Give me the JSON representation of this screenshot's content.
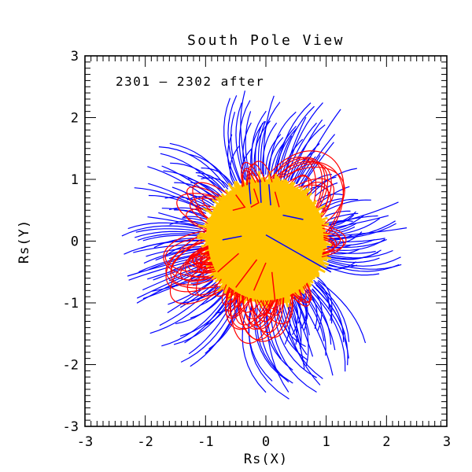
{
  "title": "South Pole View",
  "chart_data": {
    "type": "line",
    "title": "South Pole View",
    "annotation": "2301 — 2302 after",
    "xlabel": "Rs(X)",
    "ylabel": "Rs(Y)",
    "xlim": [
      -3,
      3
    ],
    "ylim": [
      -3,
      3
    ],
    "xticks": [
      "-3",
      "-2",
      "-1",
      "0",
      "1",
      "2",
      "3"
    ],
    "yticks": [
      "-3",
      "-2",
      "-1",
      "0",
      "1",
      "2",
      "3"
    ],
    "xtick_values": [
      -3,
      -2,
      -1,
      0,
      1,
      2,
      3
    ],
    "ytick_values": [
      -3,
      -2,
      -1,
      0,
      1,
      2,
      3
    ],
    "minor_per_major": 10,
    "grid": false,
    "legend": "none",
    "background": "#FFFFFF",
    "axis_color": "#000000",
    "colors": {
      "open": "#0000FF",
      "closed": "#FF0000",
      "sun": "#FFC400"
    },
    "sun": {
      "center_x": 0,
      "center_y": 0,
      "radius": 1.0,
      "spike_count": 240,
      "spike_max": 0.17
    },
    "open_clusters": [
      {
        "a0": 55,
        "a1": 120,
        "n": 42,
        "r1min": 1.5,
        "r1max": 2.55,
        "curl": -8,
        "conv": 10
      },
      {
        "a0": 120,
        "a1": 168,
        "n": 30,
        "r1min": 1.4,
        "r1max": 2.35,
        "curl": 7,
        "conv": 8
      },
      {
        "a0": 168,
        "a1": 205,
        "n": 26,
        "r1min": 1.6,
        "r1max": 2.4,
        "curl": 4,
        "conv": 6
      },
      {
        "a0": 205,
        "a1": 250,
        "n": 28,
        "r1min": 1.4,
        "r1max": 2.5,
        "curl": -6,
        "conv": 8
      },
      {
        "a0": 253,
        "a1": 288,
        "n": 16,
        "r1min": 1.7,
        "r1max": 2.6,
        "curl": 12,
        "conv": 14
      },
      {
        "a0": 288,
        "a1": 326,
        "n": 30,
        "r1min": 1.4,
        "r1max": 2.5,
        "curl": -9,
        "conv": 8
      },
      {
        "a0": 336,
        "a1": 375,
        "n": 30,
        "r1min": 1.4,
        "r1max": 2.4,
        "curl": 6,
        "conv": 8
      },
      {
        "a0": 12,
        "a1": 55,
        "n": 14,
        "r1min": 1.3,
        "r1max": 2.1,
        "curl": -5,
        "conv": 5
      }
    ],
    "closed_clusters": [
      {
        "center": 50,
        "spread": 12,
        "n": 13,
        "hw0": 10,
        "hw1": 40,
        "ap0": 1.15,
        "ap1": 1.92,
        "over": false
      },
      {
        "center": 150,
        "spread": 10,
        "n": 7,
        "hw0": 6,
        "hw1": 18,
        "ap0": 1.15,
        "ap1": 1.7,
        "over": false
      },
      {
        "center": 205,
        "spread": 12,
        "n": 16,
        "hw0": 6,
        "hw1": 26,
        "ap0": 1.05,
        "ap1": 2.0,
        "over": false
      },
      {
        "center": 268,
        "spread": 14,
        "n": 20,
        "hw0": 6,
        "hw1": 28,
        "ap0": 1.05,
        "ap1": 1.75,
        "over": true
      },
      {
        "center": 2,
        "spread": 8,
        "n": 7,
        "hw0": 5,
        "hw1": 14,
        "ap0": 1.03,
        "ap1": 1.3,
        "over": true
      },
      {
        "center": 100,
        "spread": 8,
        "n": 6,
        "hw0": 4,
        "hw1": 12,
        "ap0": 1.05,
        "ap1": 1.3,
        "over": true
      },
      {
        "center": 196,
        "spread": 8,
        "n": 14,
        "hw0": 3,
        "hw1": 10,
        "ap0": 1.0,
        "ap1": 1.25,
        "over": true
      },
      {
        "center": 237,
        "spread": 10,
        "n": 8,
        "hw0": 4,
        "hw1": 12,
        "ap0": 1.0,
        "ap1": 1.35,
        "over": true
      },
      {
        "center": 305,
        "spread": 8,
        "n": 6,
        "hw0": 3,
        "hw1": 10,
        "ap0": 1.0,
        "ap1": 1.25,
        "over": true
      }
    ],
    "disk_marks": [
      {
        "color": "open",
        "points": [
          [
            0.0,
            0.1
          ],
          [
            1.08,
            -0.5
          ]
        ]
      },
      {
        "color": "open",
        "points": [
          [
            -0.72,
            0.02
          ],
          [
            -0.4,
            0.08
          ]
        ]
      },
      {
        "color": "open",
        "points": [
          [
            0.28,
            0.42
          ],
          [
            0.62,
            0.35
          ]
        ]
      },
      {
        "color": "open",
        "points": [
          [
            -0.28,
            0.95
          ],
          [
            -0.25,
            0.6
          ]
        ]
      },
      {
        "color": "open",
        "points": [
          [
            0.05,
            0.92
          ],
          [
            0.08,
            0.58
          ]
        ]
      },
      {
        "color": "open",
        "points": [
          [
            -0.1,
            1.0
          ],
          [
            -0.08,
            0.62
          ]
        ]
      },
      {
        "color": "closed",
        "points": [
          [
            -0.2,
            0.85
          ],
          [
            -0.12,
            0.62
          ],
          [
            -0.25,
            0.55
          ]
        ]
      },
      {
        "color": "closed",
        "points": [
          [
            0.15,
            0.8
          ],
          [
            0.22,
            0.55
          ]
        ]
      },
      {
        "color": "closed",
        "points": [
          [
            -0.5,
            0.75
          ],
          [
            -0.35,
            0.55
          ],
          [
            -0.55,
            0.5
          ]
        ]
      },
      {
        "color": "closed",
        "points": [
          [
            -0.15,
            -0.3
          ],
          [
            -0.5,
            -0.75
          ]
        ]
      },
      {
        "color": "closed",
        "points": [
          [
            0.0,
            -0.35
          ],
          [
            -0.2,
            -0.8
          ]
        ]
      },
      {
        "color": "closed",
        "points": [
          [
            -0.45,
            -0.2
          ],
          [
            -0.8,
            -0.5
          ]
        ]
      },
      {
        "color": "closed",
        "points": [
          [
            0.1,
            -0.5
          ],
          [
            0.15,
            -0.95
          ]
        ]
      }
    ]
  }
}
